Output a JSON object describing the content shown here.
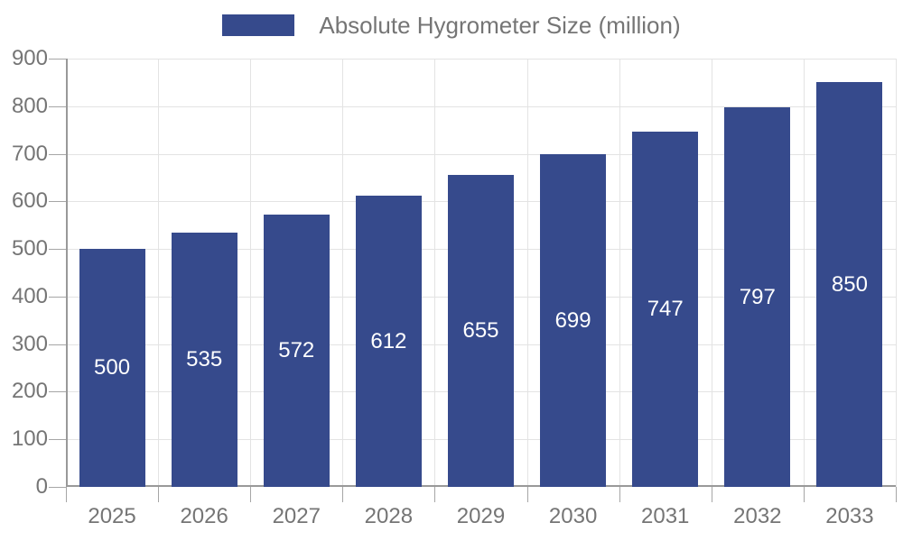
{
  "chart_data": {
    "type": "bar",
    "title": "Absolute Hygrometer Size (million)",
    "categories": [
      "2025",
      "2026",
      "2027",
      "2028",
      "2029",
      "2030",
      "2031",
      "2032",
      "2033"
    ],
    "values": [
      500,
      535,
      572,
      612,
      655,
      699,
      747,
      797,
      850
    ],
    "xlabel": "",
    "ylabel": "",
    "ylim": [
      0,
      900
    ],
    "ytick_step": 100,
    "grid": "on",
    "legend_position": "top-center",
    "value_labels": "inside-center",
    "colors": {
      "bar": "#364A8C",
      "grid": "#e3e3e3",
      "axis": "#999999",
      "tick": "#a6a6a6",
      "tick_text": "#757575",
      "legend_text": "#757575",
      "bar_label_text": "#ffffff",
      "background": "#ffffff"
    }
  }
}
